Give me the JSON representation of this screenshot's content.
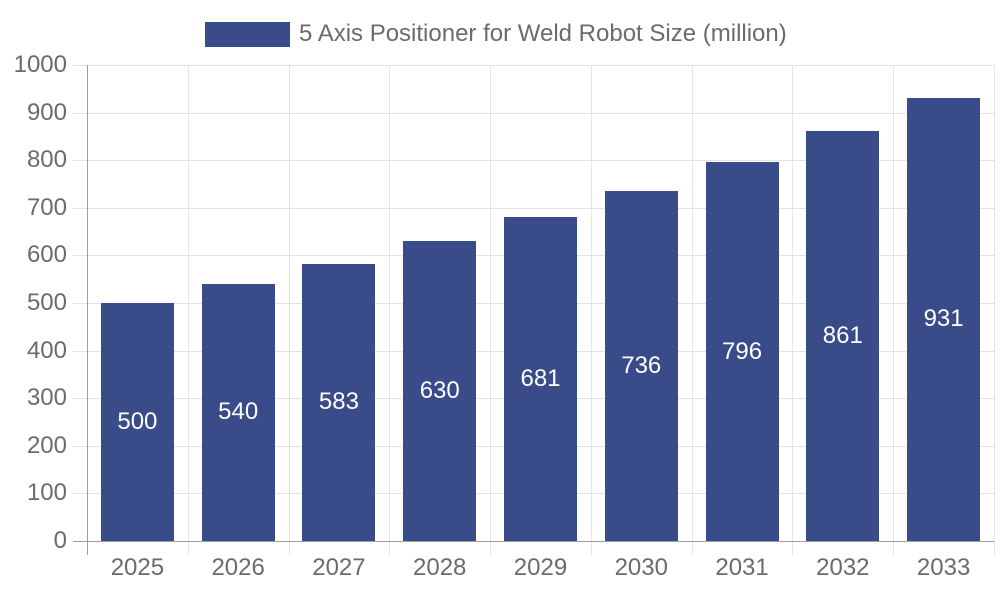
{
  "chart_data": {
    "type": "bar",
    "title": "5 Axis Positioner for Weld Robot Size (million)",
    "categories": [
      "2025",
      "2026",
      "2027",
      "2028",
      "2029",
      "2030",
      "2031",
      "2032",
      "2033"
    ],
    "values": [
      500,
      540,
      583,
      630,
      681,
      736,
      796,
      861,
      931
    ],
    "xlabel": "",
    "ylabel": "",
    "ylim": [
      0,
      1000
    ],
    "yticks": [
      0,
      100,
      200,
      300,
      400,
      500,
      600,
      700,
      800,
      900,
      1000
    ],
    "grid": true,
    "legend_position": "top-center",
    "value_label_position": "inside-center",
    "colors": {
      "bar": "#394B88",
      "bar_value_label": "#FFFFFF",
      "axis_line": "#9E9E9E",
      "gridline": "#E3E3E3",
      "tick_label": "#6B6B6B",
      "legend_text": "#6B6B6B",
      "background": "#FFFFFF"
    }
  }
}
